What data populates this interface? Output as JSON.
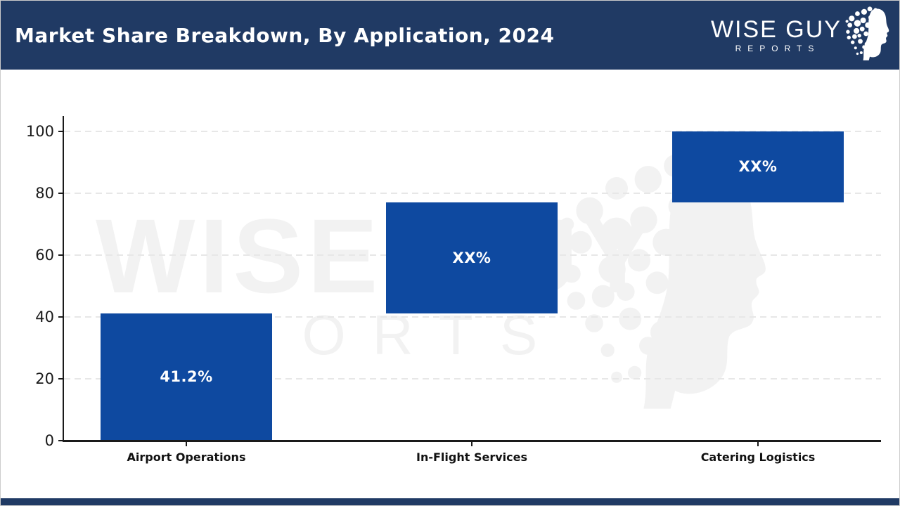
{
  "header": {
    "title": "Market Share Breakdown, By Application, 2024",
    "logo": {
      "line1": "WISE GUY",
      "line2": "REPORTS"
    }
  },
  "watermark": {
    "line1": "WISE GUY",
    "line2": "REPORTS"
  },
  "chart_data": {
    "type": "bar",
    "variant": "floating-waterfall",
    "title": "Market Share Breakdown, By Application, 2024",
    "categories": [
      "Airport Operations",
      "In-Flight Services",
      "Catering Logistics"
    ],
    "segments": [
      {
        "category": "Airport Operations",
        "start": 0,
        "end": 41.2,
        "label": "41.2%"
      },
      {
        "category": "In-Flight Services",
        "start": 41.2,
        "end": 77.1,
        "label": "XX%"
      },
      {
        "category": "Catering Logistics",
        "start": 77.1,
        "end": 100,
        "label": "XX%"
      }
    ],
    "xlabel": "",
    "ylabel": "",
    "yticks": [
      0,
      20,
      40,
      60,
      80,
      100
    ],
    "ylim": [
      0,
      105
    ],
    "grid": true,
    "grid_style": "dashed",
    "legend_position": "none",
    "bar_label_color": "#ffffff"
  },
  "colors": {
    "header_bg": "#203a64",
    "footer_bg": "#203a64",
    "bar": "#0e49a0",
    "grid": "#e7e7e7",
    "axis": "#1a1a1a",
    "watermark": "#f2f2f2",
    "title_text": "#ffffff"
  }
}
